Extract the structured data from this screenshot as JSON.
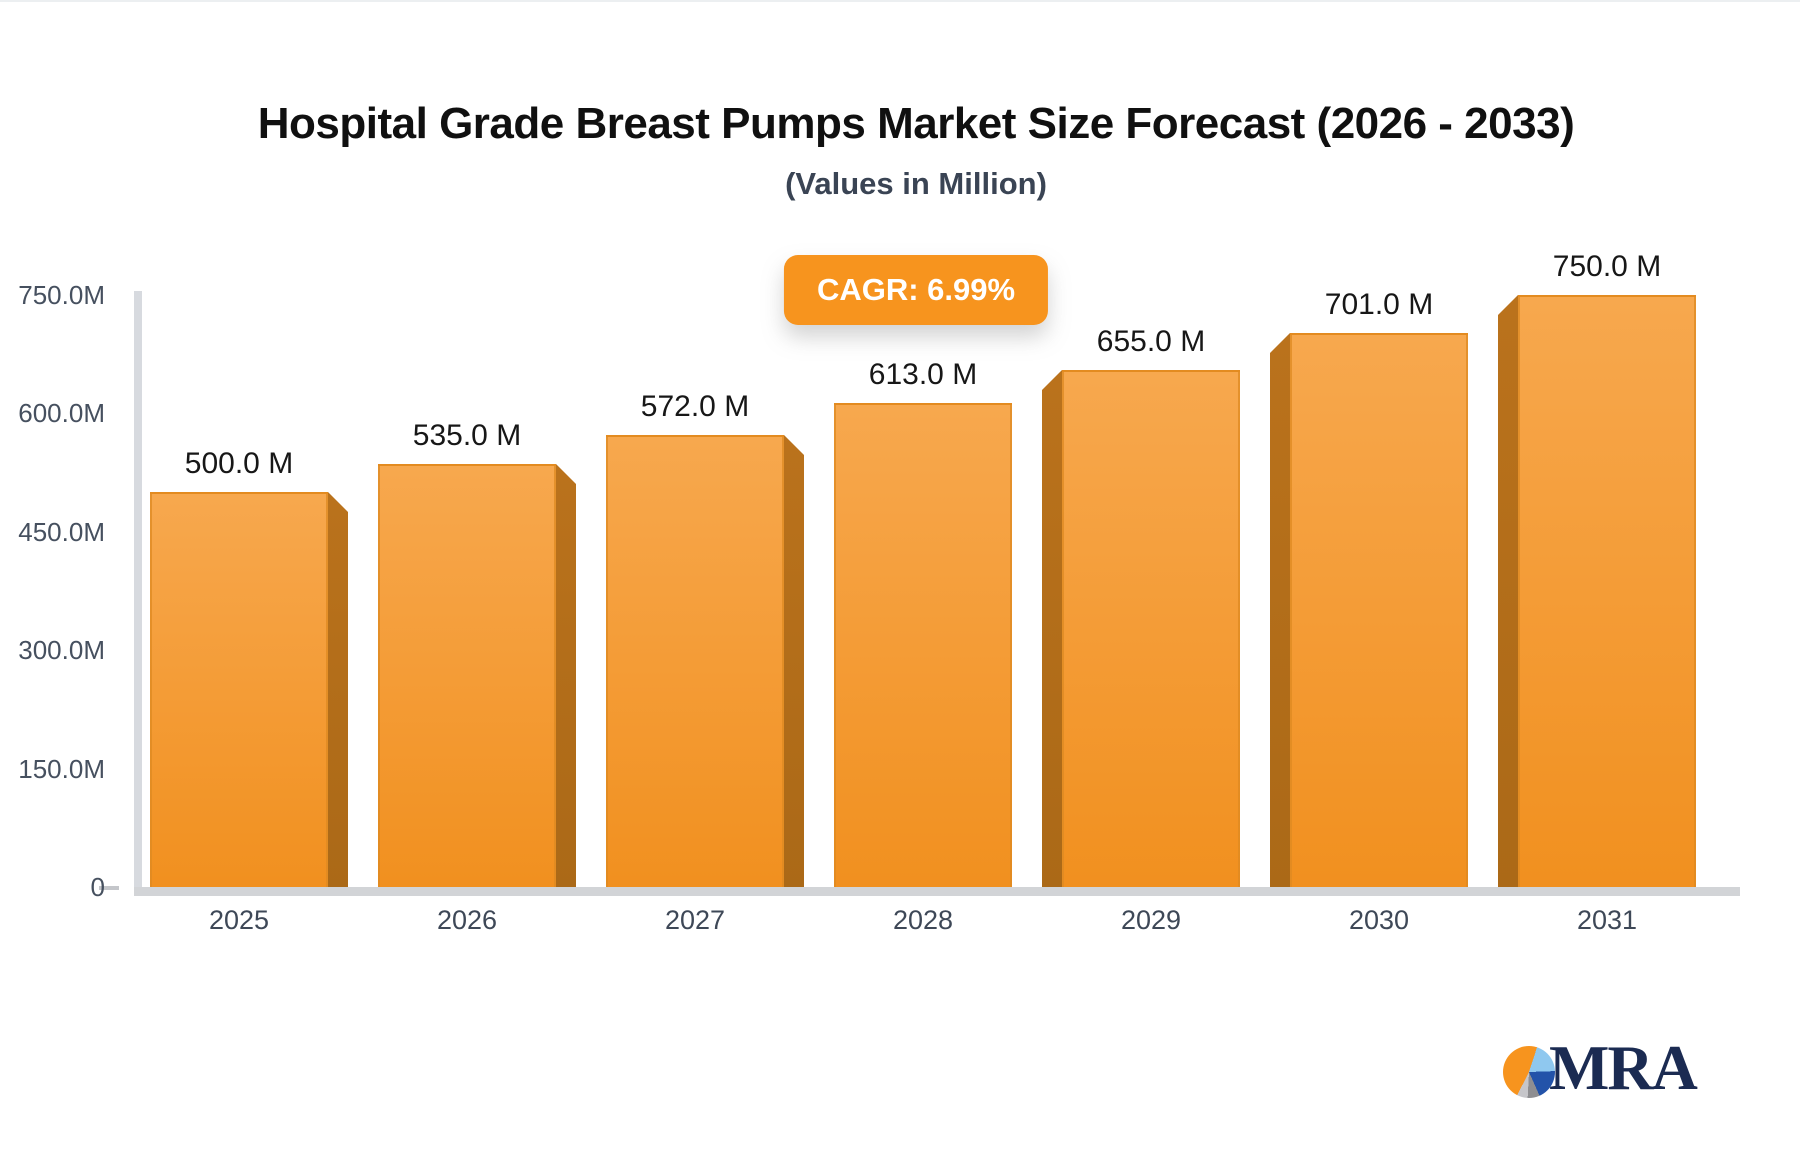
{
  "chart_data": {
    "type": "bar",
    "title": "Hospital Grade Breast Pumps Market Size Forecast (2026 - 2033)",
    "subtitle": "(Values in Million)",
    "cagr_label": "CAGR: 6.99%",
    "categories": [
      "2025",
      "2026",
      "2027",
      "2028",
      "2029",
      "2030",
      "2031"
    ],
    "values": [
      500,
      535,
      572,
      613,
      655,
      701,
      750
    ],
    "bar_labels": [
      "500.0 M",
      "535.0 M",
      "572.0 M",
      "613.0 M",
      "655.0 M",
      "701.0 M",
      "750.0 M"
    ],
    "y_ticks": [
      {
        "label": "750.0M",
        "value": 750
      },
      {
        "label": "600.0M",
        "value": 600
      },
      {
        "label": "450.0M",
        "value": 450
      },
      {
        "label": "300.0M",
        "value": 300
      },
      {
        "label": "150.0M",
        "value": 150
      },
      {
        "label": "0",
        "value": 0
      }
    ],
    "ylim": [
      0,
      750
    ],
    "xlabel": "",
    "ylabel": "",
    "grid": "off",
    "legend": "none",
    "colors": {
      "bar_gradient_top": "#F7A84E",
      "bar_gradient_bottom": "#F1901F",
      "bar_side_face": "#B56F1B",
      "badge_background": "#F7941E",
      "badge_text": "#FFFFFF",
      "axis_line": "#D6D9DE",
      "tick_text": "#46505F",
      "value_label_text": "#171717",
      "title_text": "#101010",
      "subtitle_text": "#3A4454"
    }
  },
  "logo": {
    "text": "MRA",
    "icon": "pie-chart-icon",
    "text_color": "#1B2B52"
  }
}
